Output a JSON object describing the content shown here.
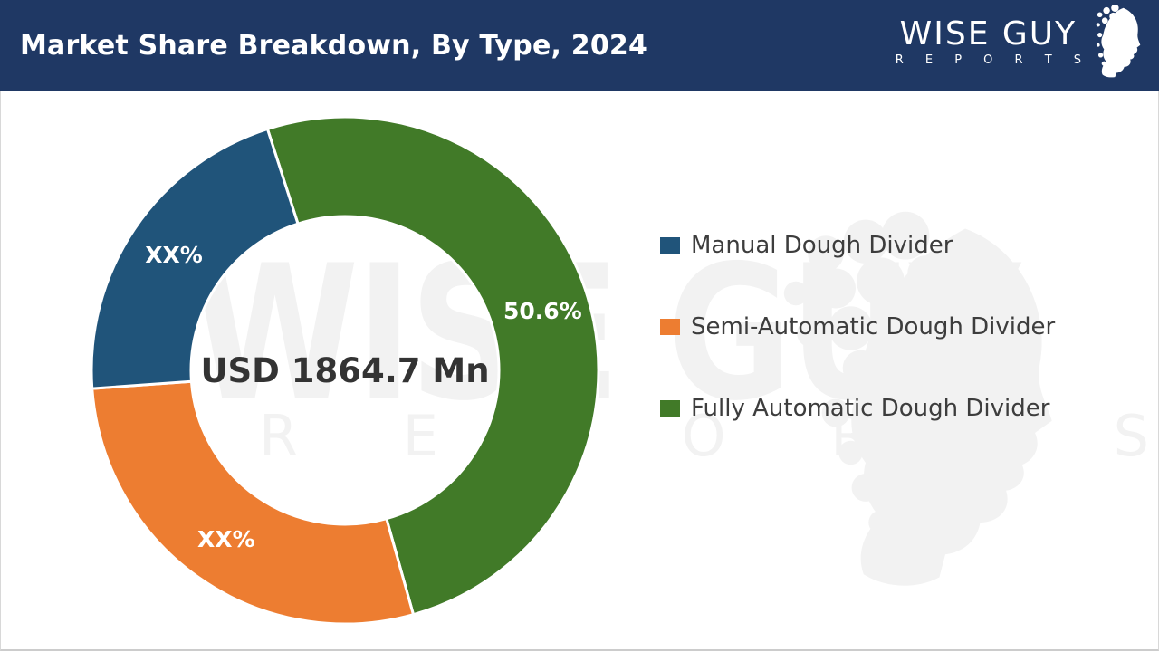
{
  "header": {
    "title": "Market Share Breakdown, By Type, 2024",
    "bg_color": "#1f3864",
    "logo": {
      "brand_line1": "WISE GUY",
      "brand_line2": "R E P O R T S"
    }
  },
  "watermark": {
    "text_large": "WISE GUY",
    "text_small": "R E P O R T S"
  },
  "chart_data": {
    "type": "donut",
    "title": "Market Share Breakdown, By Type, 2024",
    "center_label": "USD 1864.7 Mn",
    "start_angle_deg": 342.2,
    "legend_position": "right",
    "segments": [
      {
        "label": "Fully Automatic Dough Divider",
        "display_value": "50.6%",
        "share_pct": 50.6,
        "share_is_estimate": false,
        "color": "#417a28"
      },
      {
        "label": "Semi-Automatic Dough Divider",
        "display_value": "XX%",
        "share_pct": 28.2,
        "share_is_estimate": true,
        "color": "#ed7d31"
      },
      {
        "label": "Manual Dough Divider",
        "display_value": "XX%",
        "share_pct": 21.2,
        "share_is_estimate": true,
        "color": "#20547a"
      }
    ],
    "legend_order": [
      "Manual Dough Divider",
      "Semi-Automatic Dough Divider",
      "Fully Automatic Dough Divider"
    ]
  }
}
